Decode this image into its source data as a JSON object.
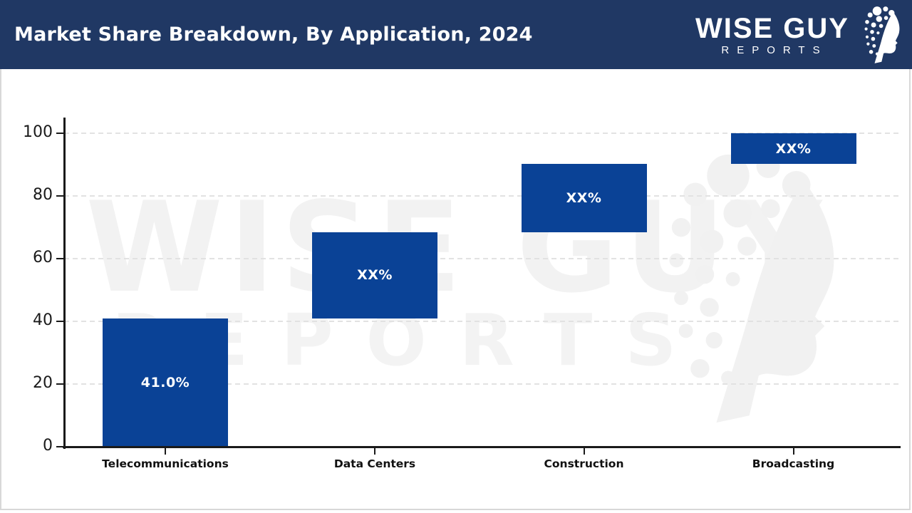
{
  "header": {
    "title": "Market Share Breakdown, By Application, 2024",
    "logo_line1": "WISE GUY",
    "logo_line2": "REPORTS"
  },
  "watermark": {
    "line1": "WISE GUY",
    "line2": "REPORTS"
  },
  "chart_data": {
    "type": "bar",
    "subtype": "waterfall",
    "title": "Market Share Breakdown, By Application, 2024",
    "categories": [
      "Telecommunications",
      "Data Centers",
      "Construction",
      "Broadcasting"
    ],
    "segments": [
      {
        "category": "Telecommunications",
        "start": 0,
        "end": 41.0,
        "value": 41.0,
        "label": "41.0%"
      },
      {
        "category": "Data Centers",
        "start": 41.0,
        "end": 68.4,
        "value": 27.4,
        "label": "XX%"
      },
      {
        "category": "Construction",
        "start": 68.4,
        "end": 90.2,
        "value": 21.8,
        "label": "XX%"
      },
      {
        "category": "Broadcasting",
        "start": 90.2,
        "end": 100.0,
        "value": 9.8,
        "label": "XX%"
      }
    ],
    "yticks": [
      0,
      20,
      40,
      60,
      80,
      100
    ],
    "ylim": [
      0,
      104
    ],
    "xlabel": "",
    "ylabel": "",
    "grid": "horizontal-dashed",
    "legend_position": "none",
    "bar_color": "#0a4296",
    "bar_label_color": "#ffffff",
    "axis_color": "#1a1a1a",
    "grid_color": "#e2e2e2",
    "header_bg_color": "#203864",
    "watermark_color": "#f2f2f2"
  }
}
